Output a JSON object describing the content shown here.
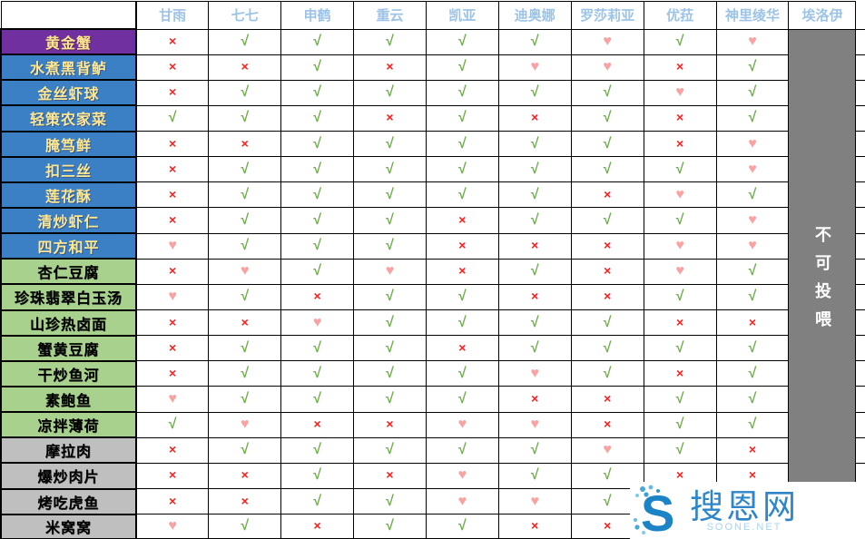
{
  "table": {
    "characters": [
      "甘雨",
      "七七",
      "申鹤",
      "重云",
      "凯亚",
      "迪奥娜",
      "罗莎莉亚",
      "优菈",
      "神里绫华",
      "埃洛伊"
    ],
    "no_feed_label": "不可投喂",
    "rows": [
      {
        "dish": "黄金蟹",
        "category": "purple",
        "cells": [
          "x",
          "check",
          "check",
          "check",
          "check",
          "check",
          "heart",
          "check",
          "heart"
        ]
      },
      {
        "dish": "水煮黑背鲈",
        "category": "blue",
        "cells": [
          "x",
          "x",
          "check",
          "x",
          "check",
          "heart",
          "heart",
          "x",
          "check"
        ]
      },
      {
        "dish": "金丝虾球",
        "category": "blue",
        "cells": [
          "x",
          "check",
          "check",
          "check",
          "check",
          "check",
          "check",
          "heart",
          "check"
        ]
      },
      {
        "dish": "轻策农家菜",
        "category": "blue",
        "cells": [
          "check",
          "check",
          "check",
          "x",
          "check",
          "x",
          "check",
          "x",
          "check"
        ]
      },
      {
        "dish": "腌笃鲜",
        "category": "blue",
        "cells": [
          "x",
          "x",
          "check",
          "check",
          "check",
          "check",
          "check",
          "x",
          "heart"
        ]
      },
      {
        "dish": "扣三丝",
        "category": "blue",
        "cells": [
          "x",
          "check",
          "check",
          "check",
          "check",
          "check",
          "check",
          "check",
          "heart"
        ]
      },
      {
        "dish": "莲花酥",
        "category": "blue",
        "cells": [
          "x",
          "check",
          "check",
          "check",
          "check",
          "check",
          "x",
          "heart",
          "check"
        ]
      },
      {
        "dish": "清炒虾仁",
        "category": "blue",
        "cells": [
          "x",
          "check",
          "check",
          "check",
          "x",
          "check",
          "check",
          "check",
          "heart"
        ]
      },
      {
        "dish": "四方和平",
        "category": "blue",
        "cells": [
          "heart",
          "check",
          "check",
          "check",
          "x",
          "x",
          "x",
          "heart",
          "heart"
        ]
      },
      {
        "dish": "杏仁豆腐",
        "category": "green",
        "cells": [
          "x",
          "heart",
          "check",
          "heart",
          "x",
          "check",
          "x",
          "heart",
          "check"
        ]
      },
      {
        "dish": "珍珠翡翠白玉汤",
        "category": "green",
        "cells": [
          "heart",
          "check",
          "x",
          "check",
          "check",
          "x",
          "x",
          "check",
          "check"
        ]
      },
      {
        "dish": "山珍热卤面",
        "category": "green",
        "cells": [
          "x",
          "x",
          "heart",
          "check",
          "check",
          "check",
          "check",
          "x",
          "x"
        ]
      },
      {
        "dish": "蟹黄豆腐",
        "category": "green",
        "cells": [
          "x",
          "check",
          "check",
          "check",
          "x",
          "check",
          "check",
          "check",
          "check"
        ]
      },
      {
        "dish": "干炒鱼河",
        "category": "green",
        "cells": [
          "x",
          "check",
          "check",
          "check",
          "check",
          "heart",
          "check",
          "x",
          "check"
        ]
      },
      {
        "dish": "素鲍鱼",
        "category": "green",
        "cells": [
          "heart",
          "check",
          "check",
          "check",
          "check",
          "x",
          "x",
          "check",
          "check"
        ]
      },
      {
        "dish": "凉拌薄荷",
        "category": "green",
        "cells": [
          "check",
          "heart",
          "x",
          "x",
          "heart",
          "heart",
          "x",
          "check",
          "check"
        ]
      },
      {
        "dish": "摩拉肉",
        "category": "gray",
        "cells": [
          "x",
          "check",
          "check",
          "check",
          "check",
          "check",
          "heart",
          "check",
          "x"
        ]
      },
      {
        "dish": "爆炒肉片",
        "category": "gray",
        "cells": [
          "x",
          "x",
          "check",
          "x",
          "heart",
          "check",
          "check",
          "x",
          "x"
        ]
      },
      {
        "dish": "烤吃虎鱼",
        "category": "gray",
        "cells": [
          "x",
          "x",
          "check",
          "check",
          "heart",
          "heart",
          "check",
          "empty",
          "empty"
        ]
      },
      {
        "dish": "米窝窝",
        "category": "gray",
        "cells": [
          "heart",
          "check",
          "x",
          "check",
          "check",
          "x",
          "x",
          "empty",
          "empty"
        ]
      }
    ]
  },
  "symbols": {
    "check": "√",
    "x": "×",
    "heart": "♥",
    "empty": ""
  },
  "colors": {
    "header_text": "#9DC3E6",
    "label_text": "#FFE88F",
    "purple": "#7030A0",
    "blue": "#3B7FC4",
    "green": "#A9D18E",
    "gray_label": "#BFBFBF",
    "no_feed_bg": "#808080",
    "check": "#6FAE4C",
    "x": "#FF1F1F",
    "heart": "#F7A3A3",
    "watermark_blue": "#2E86C8",
    "watermark_light": "#A8D4EE"
  },
  "watermark": {
    "logo_letter": "S",
    "site_name": "搜恩网",
    "site_url": "SOONE.NET"
  }
}
